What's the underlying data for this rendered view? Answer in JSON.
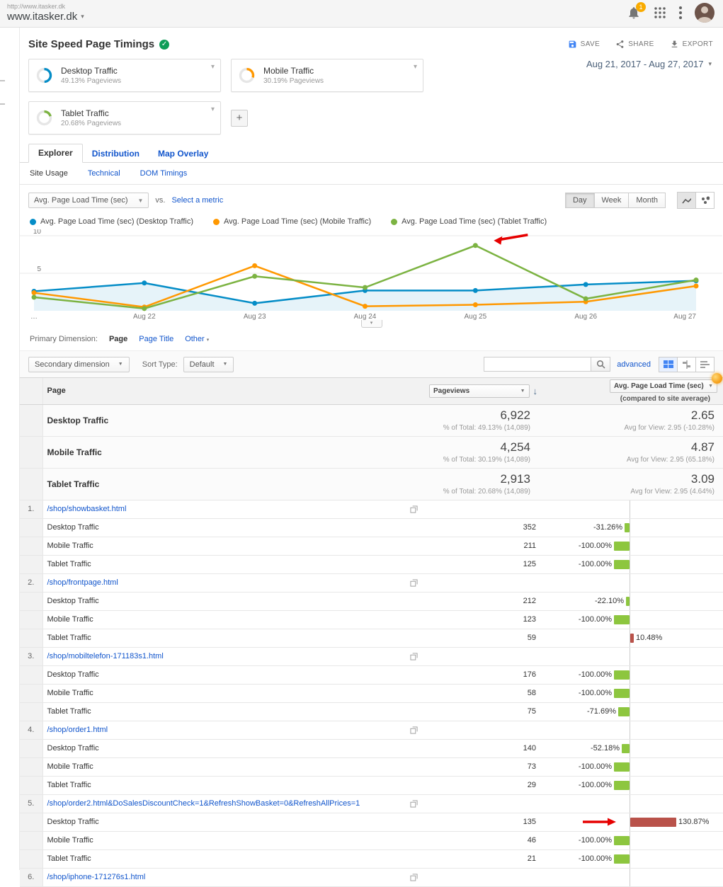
{
  "topbar": {
    "url": "http://www.itasker.dk",
    "account_name": "www.itasker.dk",
    "notification_count": "1"
  },
  "report": {
    "title": "Site Speed Page Timings",
    "save_label": "SAVE",
    "share_label": "SHARE",
    "export_label": "EXPORT",
    "date_range": "Aug 21, 2017 - Aug 27, 2017"
  },
  "segments": [
    {
      "name": "Desktop Traffic",
      "subtitle": "49.13% Pageviews",
      "color": "#058dc7",
      "pct": 49.13
    },
    {
      "name": "Mobile Traffic",
      "subtitle": "30.19% Pageviews",
      "color": "#ff9800",
      "pct": 30.19
    },
    {
      "name": "Tablet Traffic",
      "subtitle": "20.68% Pageviews",
      "color": "#7cb342",
      "pct": 20.68
    }
  ],
  "tabs": {
    "explorer": "Explorer",
    "distribution": "Distribution",
    "map_overlay": "Map Overlay"
  },
  "subtabs": {
    "site_usage": "Site Usage",
    "technical": "Technical",
    "dom_timings": "DOM Timings"
  },
  "metric_bar": {
    "metric_selector": "Avg. Page Load Time (sec)",
    "vs_label": "vs.",
    "select_metric": "Select a metric",
    "day": "Day",
    "week": "Week",
    "month": "Month"
  },
  "chart_data": {
    "type": "line",
    "x": [
      "…",
      "Aug 22",
      "Aug 23",
      "Aug 24",
      "Aug 25",
      "Aug 26",
      "Aug 27"
    ],
    "ylim": [
      0,
      10
    ],
    "yticks": [
      5,
      10
    ],
    "series": [
      {
        "name": "Avg. Page Load Time (sec) (Desktop Traffic)",
        "color": "#058dc7",
        "area": true,
        "values": [
          2.6,
          3.7,
          1.0,
          2.7,
          2.7,
          3.5,
          4.0
        ]
      },
      {
        "name": "Avg. Page Load Time (sec) (Mobile Traffic)",
        "color": "#ff9800",
        "area": false,
        "values": [
          2.4,
          0.5,
          6.0,
          0.6,
          0.8,
          1.2,
          3.3
        ]
      },
      {
        "name": "Avg. Page Load Time (sec) (Tablet Traffic)",
        "color": "#7cb342",
        "area": false,
        "values": [
          1.8,
          0.3,
          4.6,
          3.1,
          8.7,
          1.6,
          4.1
        ]
      }
    ],
    "annotation": {
      "series": 2,
      "point": 4
    }
  },
  "primary_dimension": {
    "label": "Primary Dimension:",
    "page": "Page",
    "page_title": "Page Title",
    "other": "Other"
  },
  "toolbar": {
    "secondary_dimension": "Secondary dimension",
    "sort_type_label": "Sort Type:",
    "sort_type_value": "Default",
    "advanced": "advanced"
  },
  "table": {
    "columns": {
      "page": "Page",
      "pageviews": "Pageviews",
      "metric": "Avg. Page Load Time (sec)",
      "metric_sub": "(compared to site average)"
    },
    "bar_colors": {
      "positive": "#b9524a",
      "negative": "#8dc63f"
    },
    "summary": [
      {
        "label": "Desktop Traffic",
        "pageviews": "6,922",
        "pageviews_sub": "% of Total: 49.13% (14,089)",
        "metric": "2.65",
        "metric_sub": "Avg for View: 2.95 (-10.28%)"
      },
      {
        "label": "Mobile Traffic",
        "pageviews": "4,254",
        "pageviews_sub": "% of Total: 30.19% (14,089)",
        "metric": "4.87",
        "metric_sub": "Avg for View: 2.95 (65.18%)"
      },
      {
        "label": "Tablet Traffic",
        "pageviews": "2,913",
        "pageviews_sub": "% of Total: 20.68% (14,089)",
        "metric": "3.09",
        "metric_sub": "Avg for View: 2.95 (4.64%)"
      }
    ],
    "rows": [
      {
        "index": "1.",
        "page": "/shop/showbasket.html",
        "entries": [
          {
            "label": "Desktop Traffic",
            "pageviews": "352",
            "pct": -31.26,
            "pct_label": "-31.26%"
          },
          {
            "label": "Mobile Traffic",
            "pageviews": "211",
            "pct": -100,
            "pct_label": "-100.00%"
          },
          {
            "label": "Tablet Traffic",
            "pageviews": "125",
            "pct": -100,
            "pct_label": "-100.00%"
          }
        ]
      },
      {
        "index": "2.",
        "page": "/shop/frontpage.html",
        "entries": [
          {
            "label": "Desktop Traffic",
            "pageviews": "212",
            "pct": -22.1,
            "pct_label": "-22.10%"
          },
          {
            "label": "Mobile Traffic",
            "pageviews": "123",
            "pct": -100,
            "pct_label": "-100.00%"
          },
          {
            "label": "Tablet Traffic",
            "pageviews": "59",
            "pct": 10.48,
            "pct_label": "10.48%"
          }
        ]
      },
      {
        "index": "3.",
        "page": "/shop/mobiltelefon-171183s1.html",
        "entries": [
          {
            "label": "Desktop Traffic",
            "pageviews": "176",
            "pct": -100,
            "pct_label": "-100.00%"
          },
          {
            "label": "Mobile Traffic",
            "pageviews": "58",
            "pct": -100,
            "pct_label": "-100.00%"
          },
          {
            "label": "Tablet Traffic",
            "pageviews": "75",
            "pct": -71.69,
            "pct_label": "-71.69%"
          }
        ]
      },
      {
        "index": "4.",
        "page": "/shop/order1.html",
        "entries": [
          {
            "label": "Desktop Traffic",
            "pageviews": "140",
            "pct": -52.18,
            "pct_label": "-52.18%"
          },
          {
            "label": "Mobile Traffic",
            "pageviews": "73",
            "pct": -100,
            "pct_label": "-100.00%"
          },
          {
            "label": "Tablet Traffic",
            "pageviews": "29",
            "pct": -100,
            "pct_label": "-100.00%"
          }
        ]
      },
      {
        "index": "5.",
        "page": "/shop/order2.html&DoSalesDiscountCheck=1&RefreshShowBasket=0&RefreshAllPrices=1",
        "entries": [
          {
            "label": "Desktop Traffic",
            "pageviews": "135",
            "pct": 130.87,
            "pct_label": "130.87%",
            "arrow": true
          },
          {
            "label": "Mobile Traffic",
            "pageviews": "46",
            "pct": -100,
            "pct_label": "-100.00%"
          },
          {
            "label": "Tablet Traffic",
            "pageviews": "21",
            "pct": -100,
            "pct_label": "-100.00%"
          }
        ]
      },
      {
        "index": "6.",
        "page": "/shop/iphone-171276s1.html",
        "entries": []
      }
    ]
  }
}
